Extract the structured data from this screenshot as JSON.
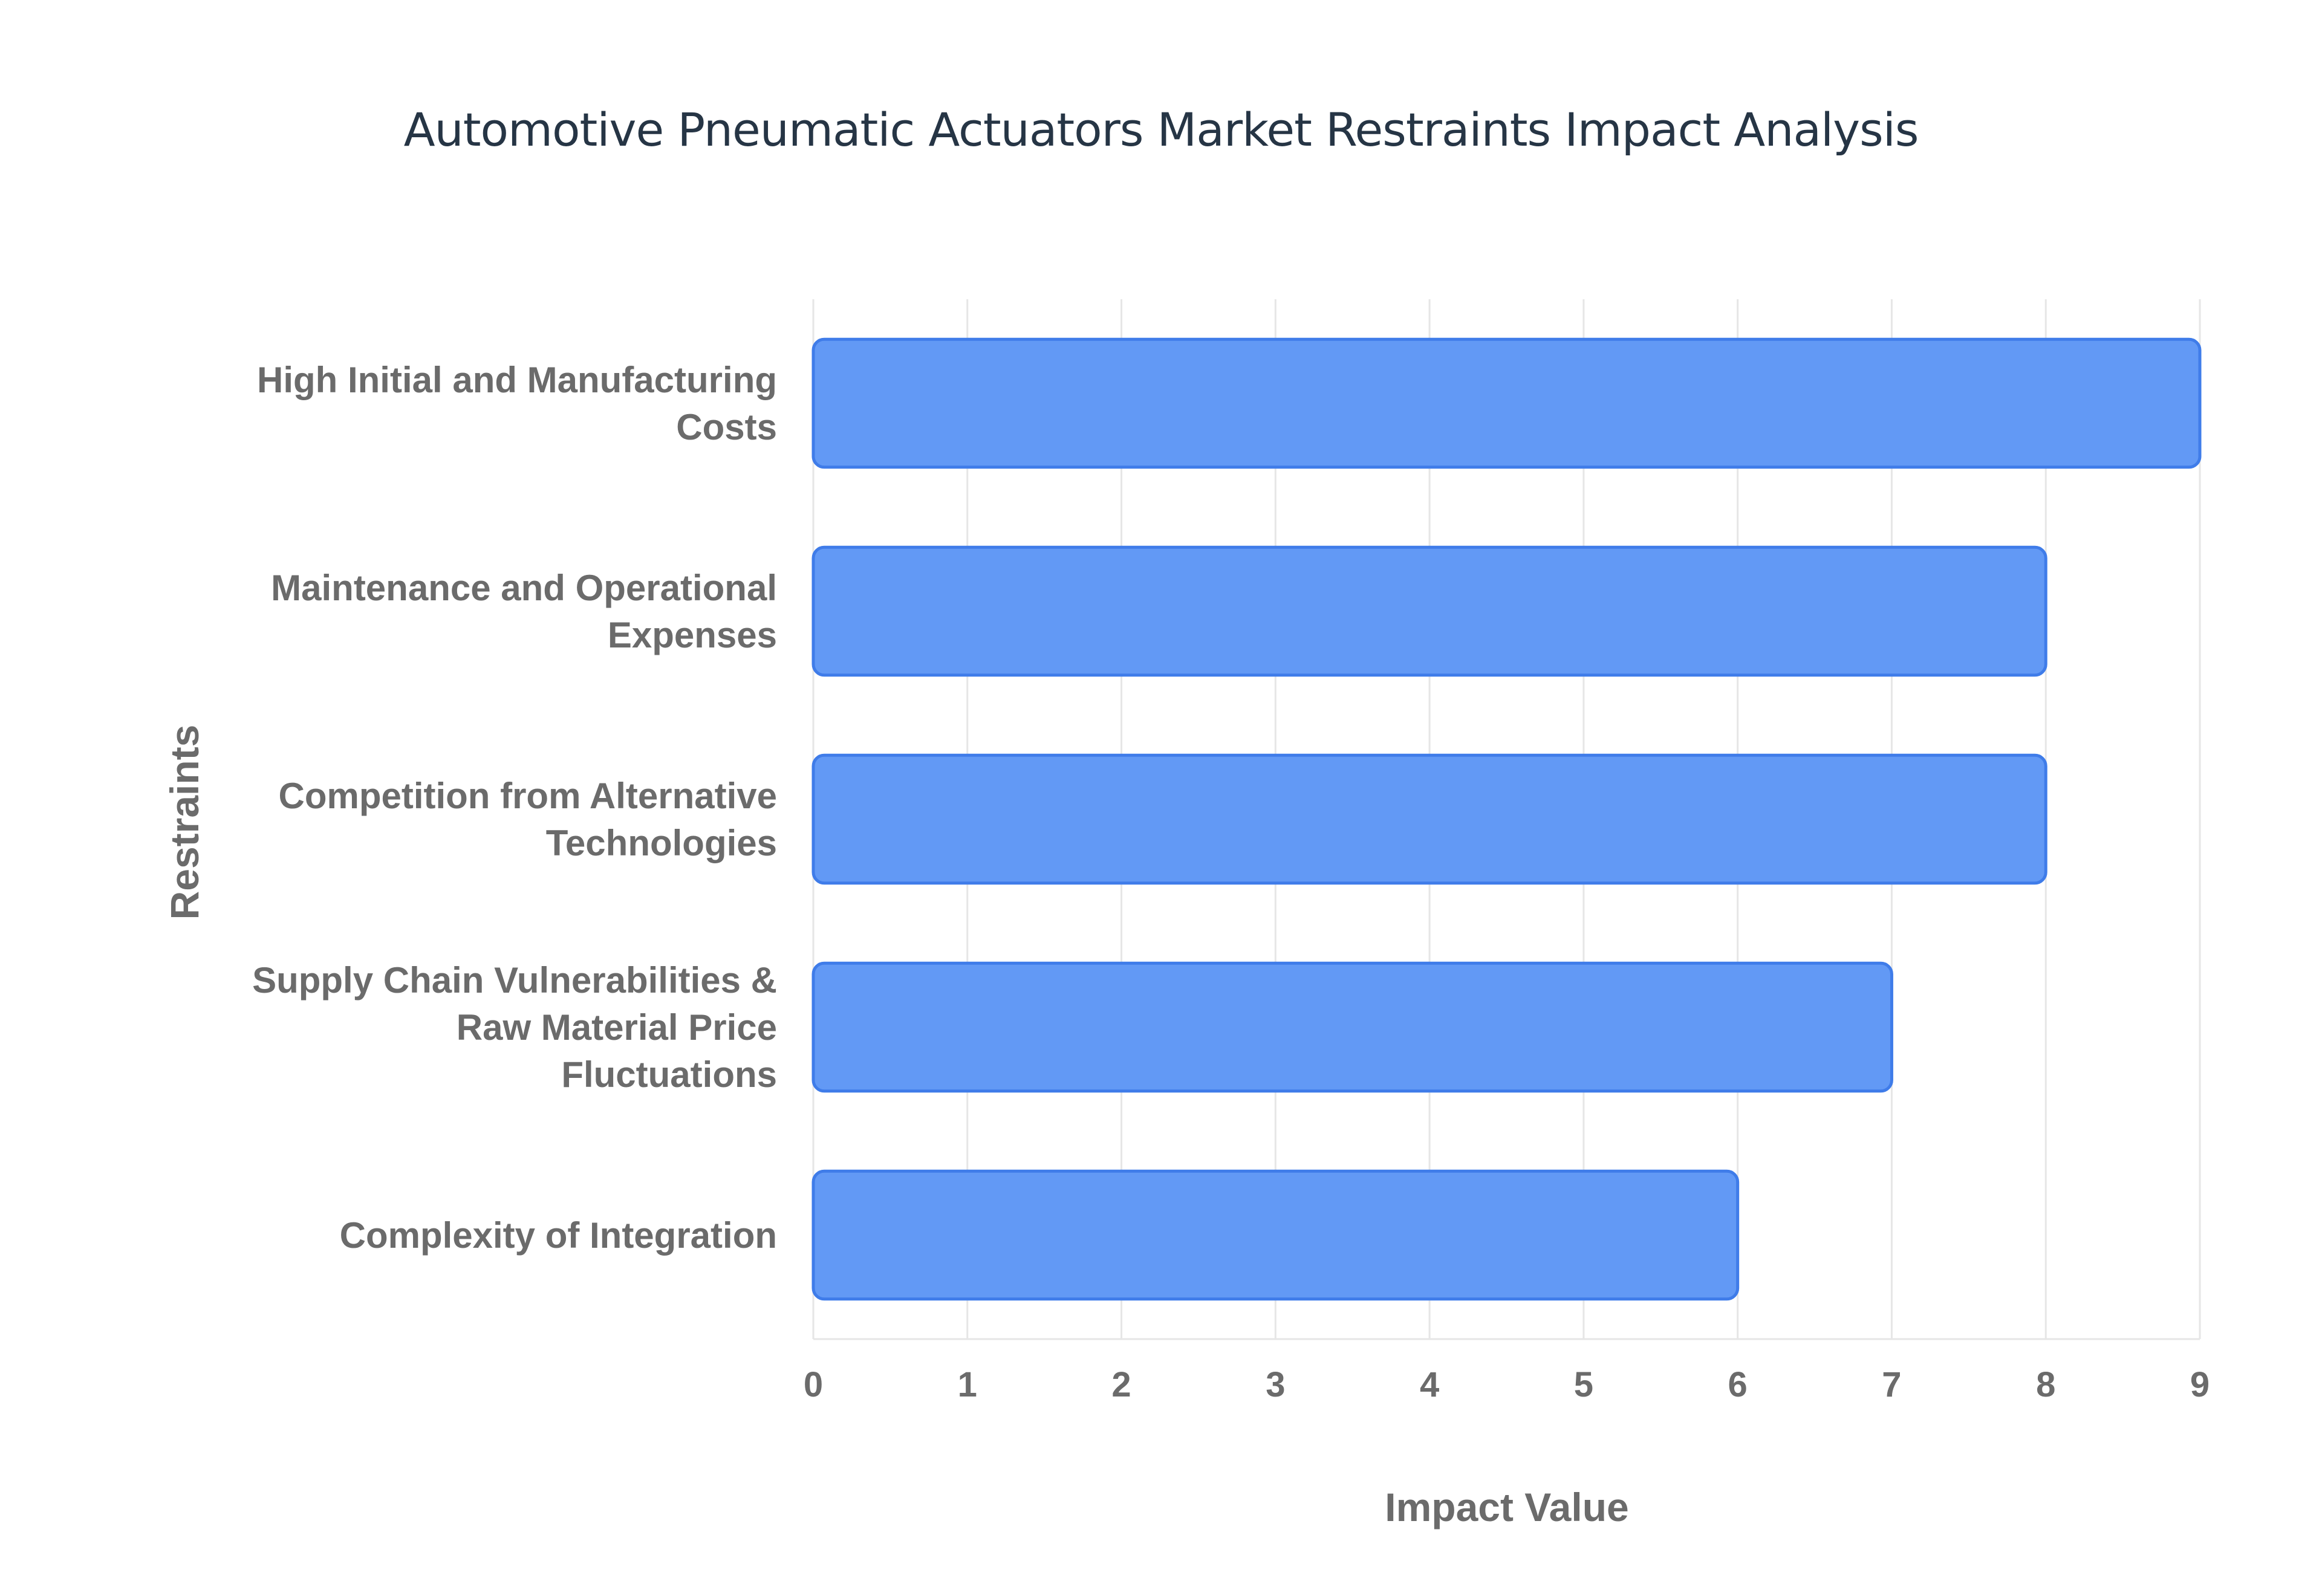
{
  "chart_data": {
    "type": "bar",
    "orientation": "horizontal",
    "title": "Automotive Pneumatic Actuators Market Restraints Impact Analysis",
    "xlabel": "Impact Value",
    "ylabel": "Restraints",
    "categories": [
      [
        "High Initial and Manufacturing",
        "Costs"
      ],
      [
        "Maintenance and Operational",
        "Expenses"
      ],
      [
        "Competition from Alternative",
        "Technologies"
      ],
      [
        "Supply Chain Vulnerabilities &",
        "Raw Material Price",
        "Fluctuations"
      ],
      [
        "Complexity of Integration"
      ]
    ],
    "values": [
      9,
      8,
      8,
      7,
      6
    ],
    "xlim": [
      0,
      9
    ],
    "xticks": [
      "0",
      "1",
      "2",
      "3",
      "4",
      "5",
      "6",
      "7",
      "8",
      "9"
    ],
    "grid": true,
    "bar_color": "#6299f5",
    "bar_edge_color": "#3f7ce9",
    "grid_color": "#e6e6e6"
  }
}
